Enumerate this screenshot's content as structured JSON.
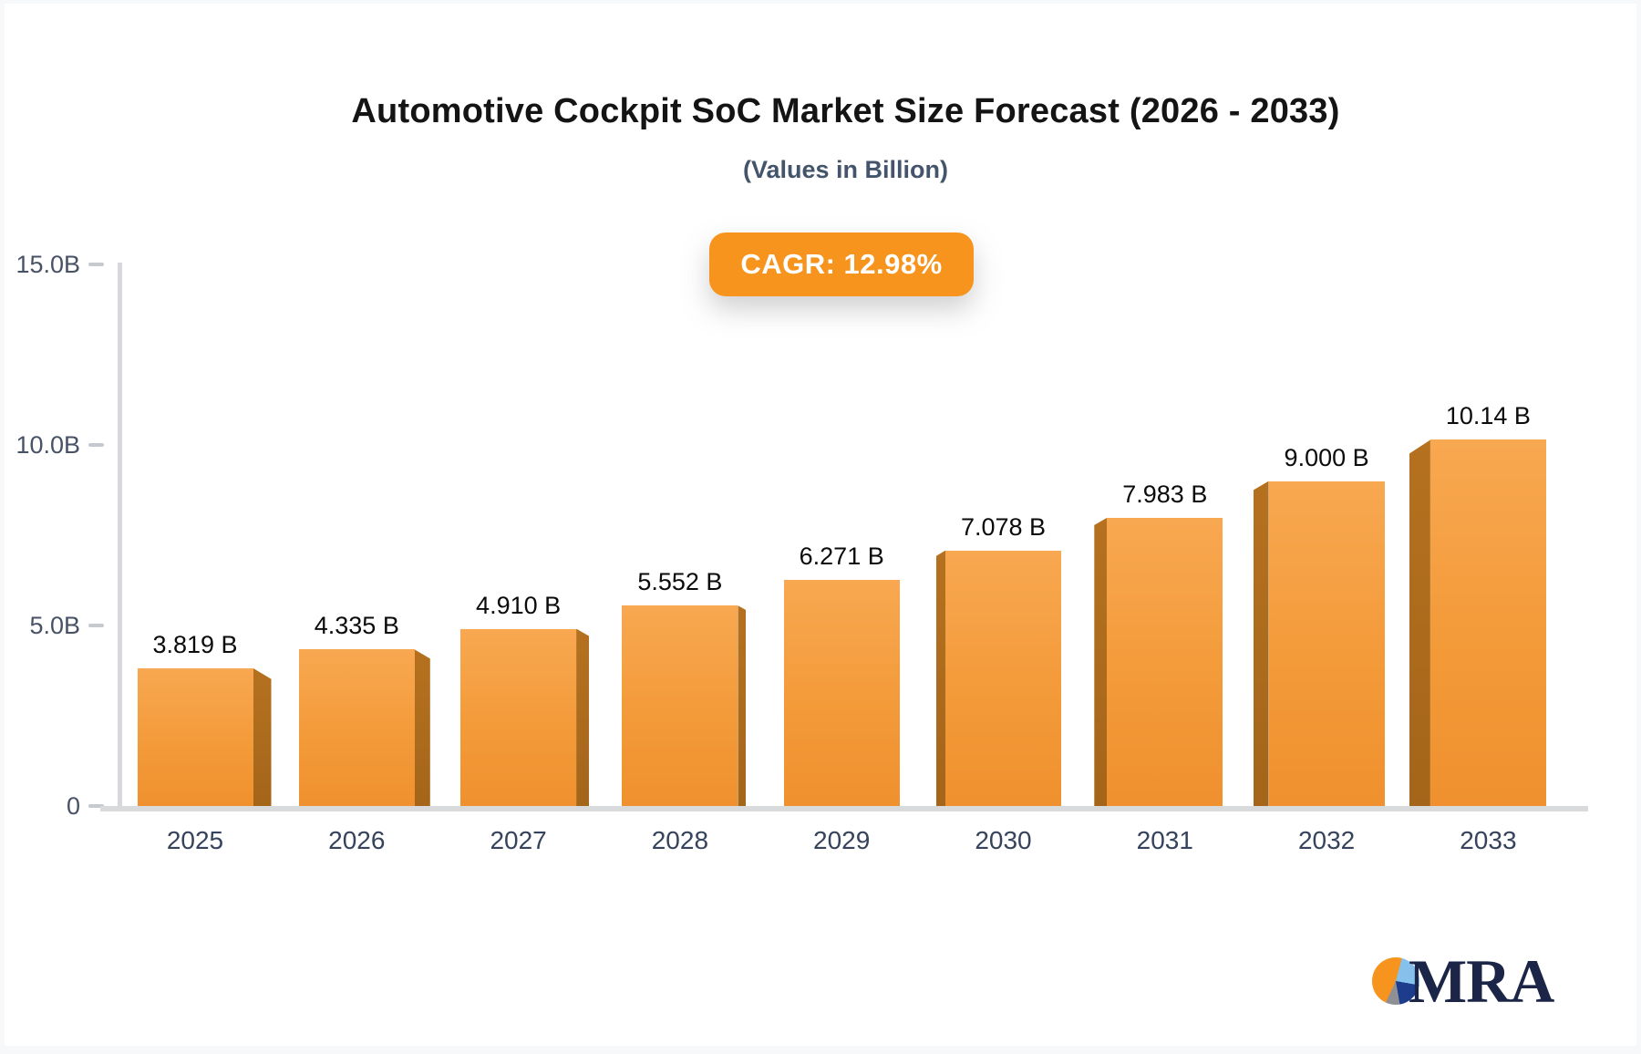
{
  "page": {
    "background": "#F7F8F9",
    "card_background": "#FFFFFF",
    "accent_color": "#F7941E"
  },
  "header": {
    "title": "Automotive Cockpit SoC Market Size Forecast (2026 - 2033)",
    "subtitle": "(Values in Billion)"
  },
  "badge": {
    "label": "CAGR: 12.98%",
    "background": "#F7941E",
    "text_color": "#FFFFFF"
  },
  "chart_data": {
    "type": "bar",
    "title": "Automotive Cockpit SoC Market Size Forecast (2026 - 2033)",
    "subtitle": "(Values in Billion)",
    "categories": [
      "2025",
      "2026",
      "2027",
      "2028",
      "2029",
      "2030",
      "2031",
      "2032",
      "2033"
    ],
    "values": [
      3.819,
      4.335,
      4.91,
      5.552,
      6.271,
      7.078,
      7.983,
      9.0,
      10.14
    ],
    "value_labels": [
      "3.819 B",
      "4.335 B",
      "4.910 B",
      "5.552 B",
      "6.271 B",
      "7.078 B",
      "7.983 B",
      "9.000 B",
      "10.14 B"
    ],
    "cagr_label": "CAGR: 12.98%",
    "y_ticks": [
      {
        "label": "15.0B",
        "value": 15
      },
      {
        "label": "10.0B",
        "value": 10
      },
      {
        "label": "5.0B",
        "value": 5
      },
      {
        "label": "0",
        "value": 0
      }
    ],
    "ylim": [
      0,
      15
    ],
    "grid": false,
    "legend": false,
    "bar_style": "3d-extruded",
    "bar_face_top_color": "#F8A851",
    "bar_face_bottom_color": "#F0902E",
    "bar_side_color": "#AC681B",
    "axis_color": "#D6D8DB",
    "tick_label_color": "#475266",
    "category_label_color": "#36435C"
  },
  "logo": {
    "text": "MRA",
    "text_color": "#1B2547",
    "pie_colors": [
      "#F7941E",
      "#85C1EA",
      "#1E3C8C",
      "#8E9096"
    ]
  }
}
